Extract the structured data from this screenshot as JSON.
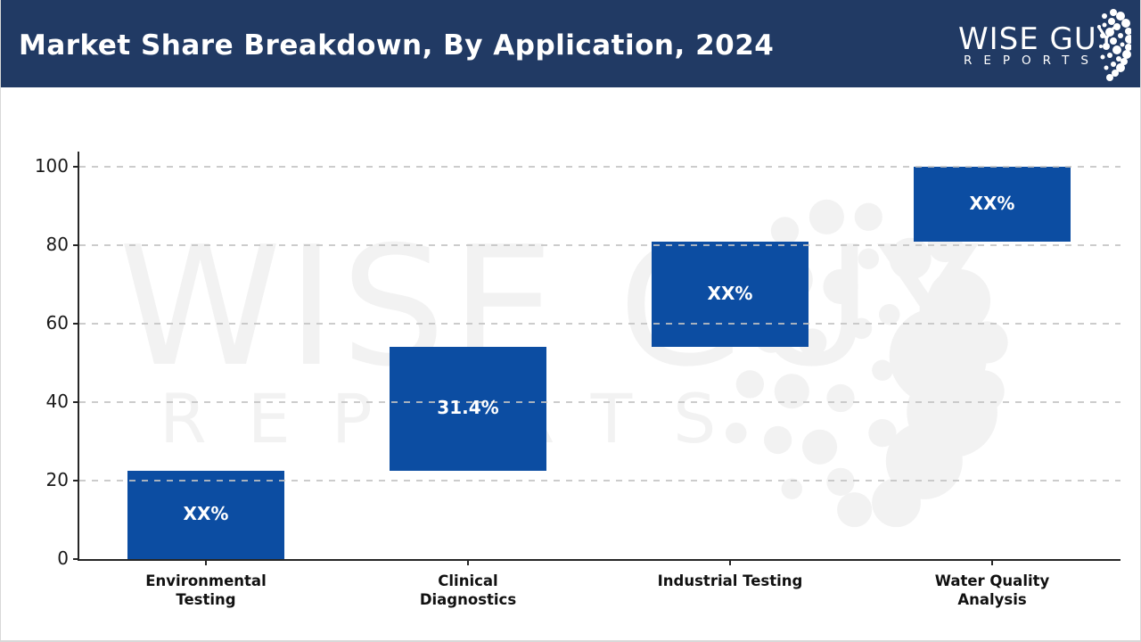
{
  "header": {
    "title": "Market Share Breakdown, By Application, 2024",
    "brand": {
      "name": "WISE GUY",
      "subtitle": "REPORTS"
    }
  },
  "watermark": {
    "line1": "WISE GUY",
    "line2": "REPORTS"
  },
  "colors": {
    "header_bg": "#213A64",
    "bar": "#0C4DA2",
    "axis": "#262626",
    "gridline": "#C3C3C3",
    "watermark": "#F2F2F2",
    "title_text": "#FFFFFF",
    "tick_text": "#1A1A1A"
  },
  "chart_data": {
    "type": "bar",
    "subtype": "waterfall",
    "title": "Market Share Breakdown, By Application, 2024",
    "xlabel": "",
    "ylabel": "",
    "ylim": [
      0,
      104
    ],
    "yticks": [
      0,
      20,
      40,
      60,
      80,
      100
    ],
    "grid": "horizontal-dashed, drawn over bars",
    "legend": "none",
    "bar_color": "#0C4DA2",
    "categories": [
      "Environmental Testing",
      "Clinical Diagnostics",
      "Industrial Testing",
      "Water Quality Analysis"
    ],
    "bars": [
      {
        "category": "Environmental Testing",
        "category_lines": [
          "Environmental",
          "Testing"
        ],
        "start": 0,
        "end": 22.6,
        "value": 22.6,
        "label": "XX%"
      },
      {
        "category": "Clinical Diagnostics",
        "category_lines": [
          "Clinical",
          "Diagnostics"
        ],
        "start": 22.6,
        "end": 54.0,
        "value": 31.4,
        "label": "31.4%"
      },
      {
        "category": "Industrial Testing",
        "category_lines": [
          "Industrial Testing"
        ],
        "start": 54.0,
        "end": 80.8,
        "value": 26.8,
        "label": "XX%"
      },
      {
        "category": "Water Quality Analysis",
        "category_lines": [
          "Water Quality",
          "Analysis"
        ],
        "start": 80.8,
        "end": 100,
        "value": 19.2,
        "label": "XX%"
      }
    ]
  }
}
